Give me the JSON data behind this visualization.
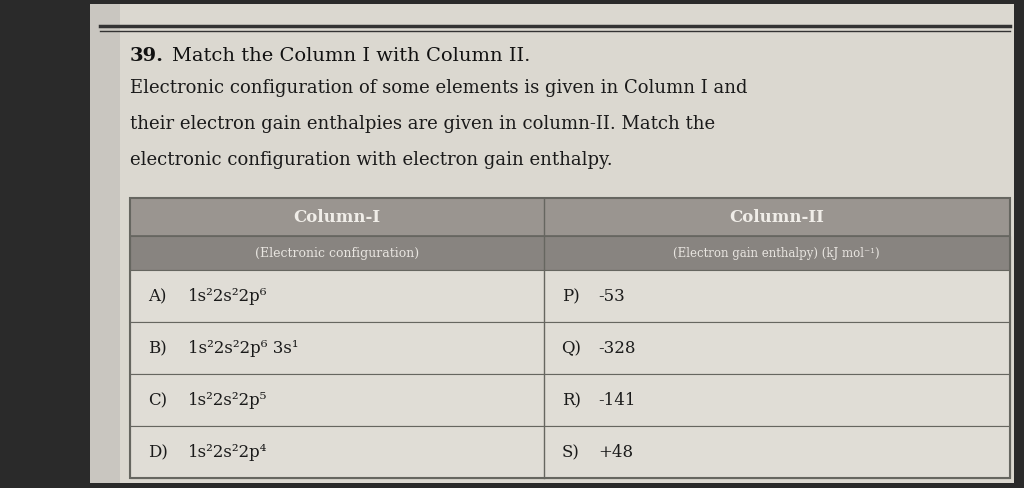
{
  "question_number": "39.",
  "question_title": "Match the Column I with Column II.",
  "paragraph_line1": "Electronic configuration of some elements is given in Column I and",
  "paragraph_line2": "their electron gain enthalpies are given in column-II. Match the",
  "paragraph_line3": "electronic configuration with electron gain enthalpy.",
  "col1_header": "Column-I",
  "col2_header": "Column-II",
  "col1_subheader": "(Electronic configuration)",
  "col2_subheader": "(Electron gain enthalpy) (kJ mol⁻¹)",
  "rows": [
    {
      "label1": "A)",
      "val1": "1s²2s²2p⁶",
      "label2": "P)",
      "val2": "-53"
    },
    {
      "label1": "B)",
      "val1": "1s²2s²2p⁶ 3s¹",
      "label2": "Q)",
      "val2": "-328"
    },
    {
      "label1": "C)",
      "val1": "1s²2s²2p⁵",
      "label2": "R)",
      "val2": "-141"
    },
    {
      "label1": "D)",
      "val1": "1s²2s²2p⁴",
      "label2": "S)",
      "val2": "+48"
    }
  ],
  "paper_bg": "#dbd8d0",
  "shadow_bg": "#2a2a2a",
  "header_bg": "#9a9590",
  "row_bg": "#ccc9c2",
  "row_bg_white": "#e0ddd6",
  "table_border": "#666660",
  "text_color": "#1a1a1a",
  "title_color": "#111111",
  "line_color": "#333333"
}
